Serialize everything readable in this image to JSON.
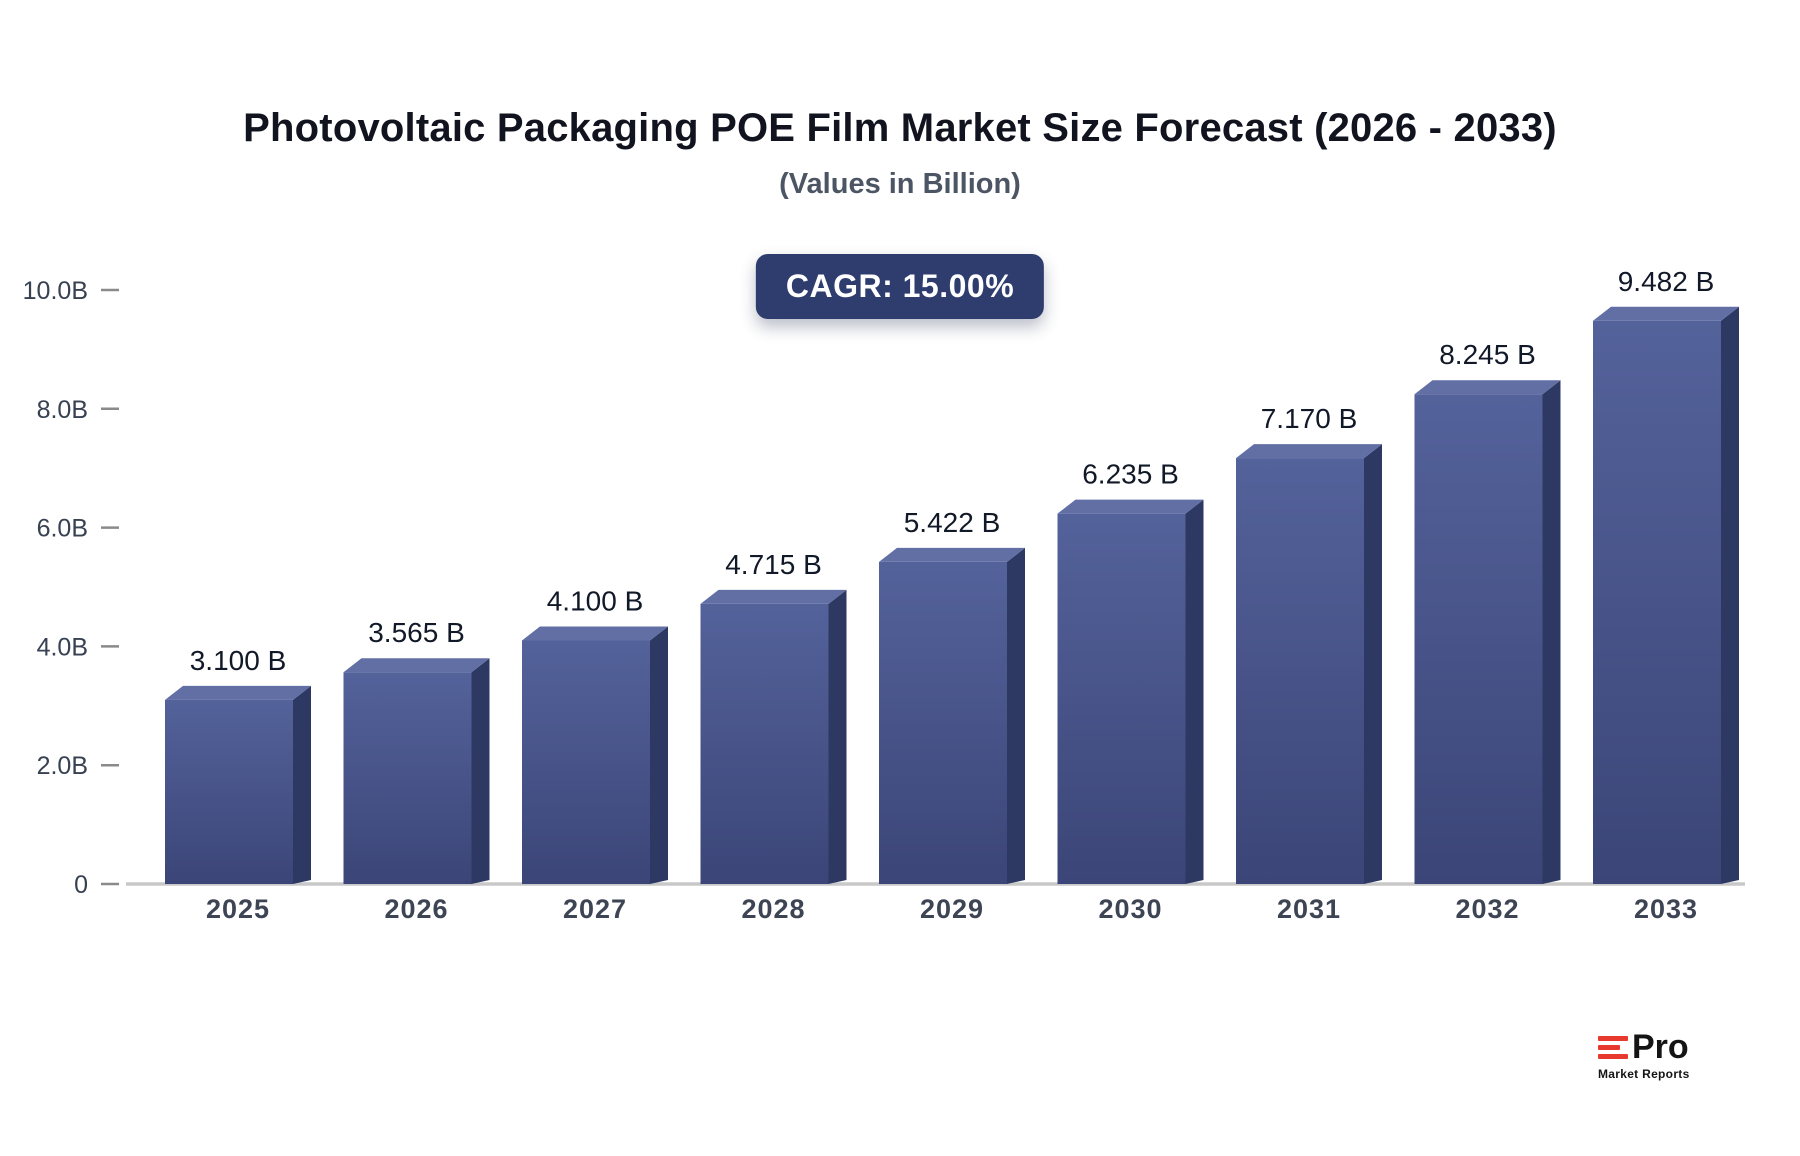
{
  "chart_data": {
    "type": "bar",
    "title": "Photovoltaic Packaging POE Film Market Size Forecast (2026 - 2033)",
    "subtitle": "(Values in Billion)",
    "cagr_label": "CAGR: 15.00%",
    "categories": [
      "2025",
      "2026",
      "2027",
      "2028",
      "2029",
      "2030",
      "2031",
      "2032",
      "2033"
    ],
    "values": [
      3.1,
      3.565,
      4.1,
      4.715,
      5.422,
      6.235,
      7.17,
      8.245,
      9.482
    ],
    "value_labels": [
      "3.100 B",
      "3.565 B",
      "4.100 B",
      "4.715 B",
      "5.422 B",
      "6.235 B",
      "7.170 B",
      "8.245 B",
      "9.482 B"
    ],
    "xlabel": "",
    "ylabel": "",
    "ylim": [
      0,
      10
    ],
    "yticks": {
      "values": [
        0,
        2,
        4,
        6,
        8,
        10
      ],
      "labels": [
        "0",
        "2.0B",
        "4.0B",
        "6.0B",
        "8.0B",
        "10.0B"
      ]
    },
    "grid": false,
    "legend": false
  },
  "colors": {
    "bar_front_top": "#54629b",
    "bar_front_bottom": "#3b4577",
    "bar_side": "#2d3963",
    "bar_top": "#626fa5",
    "badge_bg": "#2e3c6e",
    "axis_line": "#c8c8c8",
    "tick": "#8a8a8a",
    "ytick_text": "#374151",
    "xtick_text": "#3d4454",
    "value_text": "#111827",
    "logo_red": "#e8392e"
  },
  "branding": {
    "logo_text": "Pro",
    "logo_subtext": "Market Reports"
  }
}
